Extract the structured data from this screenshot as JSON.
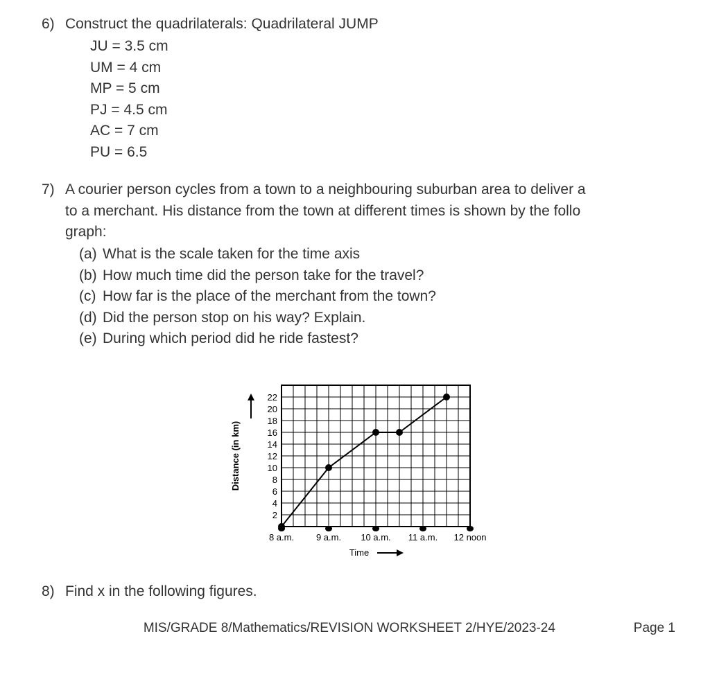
{
  "q6": {
    "num": "6)",
    "title": "Construct the quadrilaterals: Quadrilateral JUMP",
    "measures": [
      "JU = 3.5 cm",
      "UM = 4 cm",
      "MP = 5 cm",
      "PJ = 4.5 cm",
      "AC = 7 cm",
      "PU = 6.5"
    ]
  },
  "q7": {
    "num": "7)",
    "line1": "A courier person cycles from a town to a neighbouring suburban area to deliver a",
    "line2": "to a merchant. His distance from the town at different times is shown by the follo",
    "line3": "graph:",
    "subs": [
      {
        "label": "(a)",
        "text": "What is the scale taken for the time axis"
      },
      {
        "label": "(b)",
        "text": "How much time did the person take for the travel?"
      },
      {
        "label": "(c)",
        "text": "How far is the place of the merchant from the town?"
      },
      {
        "label": "(d)",
        "text": "Did the person stop on his way? Explain."
      },
      {
        "label": "(e)",
        "text": "During which period did he ride fastest?"
      }
    ]
  },
  "q8": {
    "num": "8)",
    "text": "Find x in the following figures."
  },
  "footer": {
    "left": "MIS/GRADE 8/Mathematics/REVISION WORKSHEET 2/HYE/2023-24",
    "right": "Page 1"
  },
  "graph": {
    "type": "line",
    "background": "#ffffff",
    "grid_color": "#000000",
    "axis_color": "#000000",
    "y_label": "Distance (in km)",
    "x_label": "Time",
    "arrow": "→",
    "y_ticks": [
      2,
      4,
      6,
      8,
      10,
      12,
      14,
      16,
      18,
      20,
      22
    ],
    "x_ticks": [
      "8 a.m.",
      "9 a.m.",
      "10 a.m.",
      "11 a.m.",
      "12 noon"
    ],
    "x_range_units": 16,
    "y_range_units": 12,
    "points_units": [
      {
        "x": 0,
        "y": 0
      },
      {
        "x": 4,
        "y": 5
      },
      {
        "x": 8,
        "y": 8
      },
      {
        "x": 10,
        "y": 8
      },
      {
        "x": 14,
        "y": 11
      }
    ],
    "x_tick_positions_units": [
      0,
      4,
      8,
      12,
      16
    ],
    "marker_color": "#000000",
    "marker_radius": 5,
    "line_color": "#000000",
    "line_width": 2,
    "tick_font_size": 13,
    "label_font_size": 13
  }
}
